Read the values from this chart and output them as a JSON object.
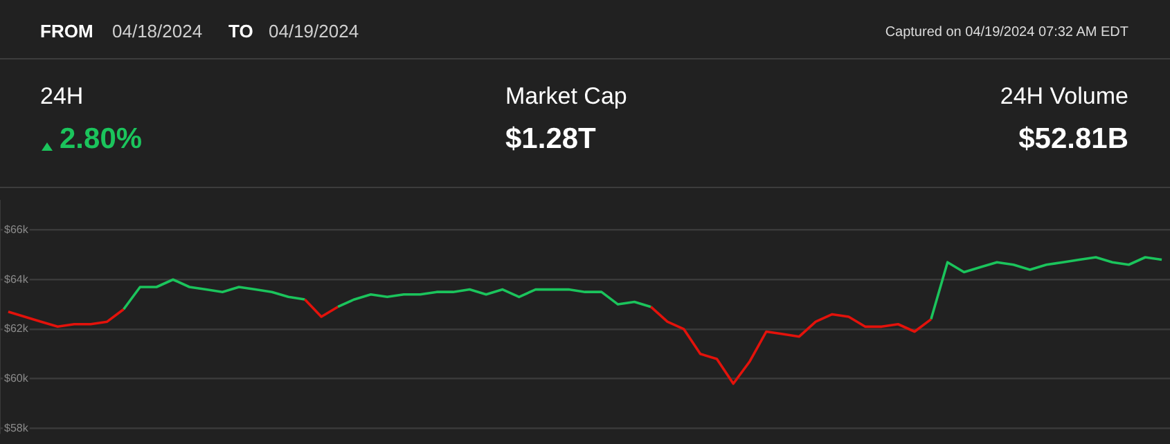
{
  "chart_data": {
    "type": "line",
    "annotations": [
      "FROM",
      "04/18/2024",
      "TO",
      "04/19/2024",
      "Captured on 04/19/2024 07:32 AM EDT",
      "24H",
      "2.80%",
      "Market Cap",
      "$1.28T",
      "24H Volume",
      "$52.81B"
    ],
    "categories": [
      null,
      null,
      null,
      null,
      null,
      null,
      null,
      null,
      null,
      null,
      null,
      null,
      null,
      null,
      null,
      null,
      null,
      null,
      null,
      null,
      null,
      null,
      null,
      null,
      null,
      null,
      null,
      null,
      null,
      null,
      null,
      null,
      null,
      null,
      null,
      null,
      null,
      null,
      null,
      null,
      null,
      null,
      null,
      null,
      null,
      null,
      null,
      null,
      null,
      null,
      null,
      null,
      null,
      null,
      null,
      null,
      null,
      null,
      null,
      null,
      null,
      null,
      null,
      null,
      null,
      null,
      null,
      null,
      null,
      null,
      null
    ],
    "series": [
      {
        "color": "#e3120b",
        "values": [
          62.7,
          62.5,
          62.3,
          62.1,
          62.2,
          62.2,
          62.3,
          62.8,
          null,
          null,
          null,
          null,
          null,
          null,
          null,
          null,
          null,
          null,
          63.2,
          62.5,
          62.9,
          null,
          null,
          null,
          null,
          null,
          null,
          null,
          null,
          null,
          null,
          null,
          null,
          null,
          null,
          null,
          null,
          null,
          null,
          62.9,
          62.3,
          62.0,
          61.0,
          60.8,
          59.8,
          60.7,
          61.9,
          61.8,
          61.7,
          62.3,
          62.6,
          62.5,
          62.1,
          62.1,
          62.2,
          61.9,
          62.4,
          null,
          null,
          null,
          null,
          null,
          null,
          null,
          null,
          null,
          null,
          null,
          null,
          null,
          null
        ]
      },
      {
        "color": "#1bc45c",
        "values": [
          null,
          null,
          null,
          null,
          null,
          null,
          null,
          62.8,
          63.7,
          63.7,
          64.0,
          63.7,
          63.6,
          63.5,
          63.7,
          63.6,
          63.5,
          63.3,
          63.2,
          null,
          62.9,
          63.2,
          63.4,
          63.3,
          63.4,
          63.4,
          63.5,
          63.5,
          63.6,
          63.4,
          63.6,
          63.3,
          63.6,
          63.6,
          63.6,
          63.5,
          63.5,
          63.0,
          63.1,
          62.9,
          null,
          null,
          null,
          null,
          null,
          null,
          null,
          null,
          null,
          null,
          null,
          null,
          null,
          null,
          null,
          null,
          62.4,
          64.7,
          64.3,
          64.5,
          64.7,
          64.6,
          64.4,
          64.6,
          64.7,
          64.8,
          64.9,
          64.7,
          64.6,
          64.9,
          64.8
        ]
      }
    ],
    "ylim": [
      57.8,
      67.2
    ],
    "yticks": [
      {
        "value": 58,
        "label": "$58k"
      },
      {
        "value": 60,
        "label": "$60k"
      },
      {
        "value": 62,
        "label": "$62k"
      },
      {
        "value": 64,
        "label": "$64k"
      },
      {
        "value": 66,
        "label": "$66k"
      }
    ],
    "grid": "y",
    "legend": false,
    "marker": "none",
    "line_style": "solid",
    "tick_labels": "y"
  }
}
